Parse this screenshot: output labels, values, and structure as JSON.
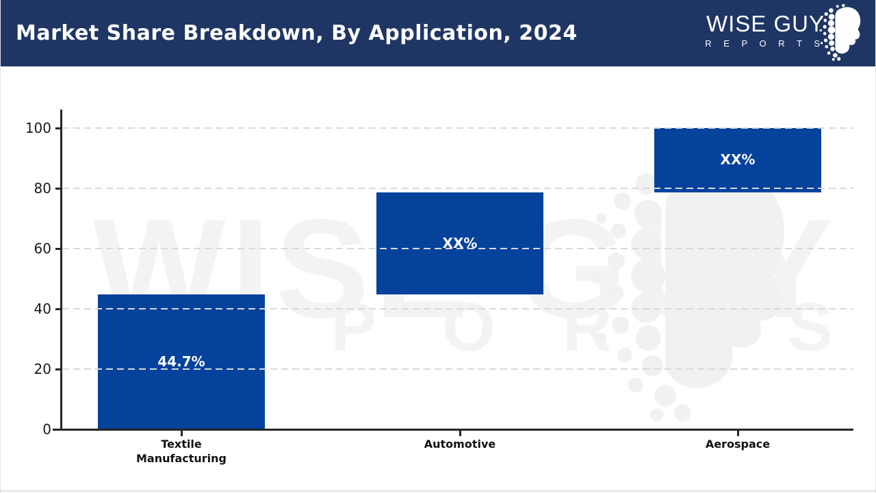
{
  "header": {
    "title": "Market Share Breakdown, By Application, 2024",
    "logo": {
      "name": "WISE GUY",
      "sub": "R E P O R T S"
    }
  },
  "watermark": {
    "line1": "WISE GUY",
    "line2": "R E P O R T S"
  },
  "colors": {
    "header_bg": "#1F3664",
    "header_text": "#FFFFFF",
    "bar_fill": "#04429C",
    "bar_label_text": "#FFFFFF",
    "gridline": "#D9D9D9",
    "axis_line": "#262626",
    "tick_text": "#1A1A1A",
    "category_text": "#111111",
    "watermark_text": "#F3F3F3",
    "watermark_face": "#F1F1F1",
    "background": "#FFFFFF"
  },
  "chart_data": {
    "type": "bar",
    "variant": "floating-segment waterfall, single color",
    "title": "Market Share Breakdown, By Application, 2024",
    "categories": [
      "Textile Manufacturing",
      "Automotive",
      "Aerospace"
    ],
    "category_lines": [
      [
        "Textile",
        "Manufacturing"
      ],
      [
        "Automotive"
      ],
      [
        "Aerospace"
      ]
    ],
    "bars": [
      {
        "category": "Textile Manufacturing",
        "start": 0,
        "end": 44.7,
        "label": "44.7%"
      },
      {
        "category": "Automotive",
        "start": 44.7,
        "end": 78.6,
        "label": "XX%"
      },
      {
        "category": "Aerospace",
        "start": 78.6,
        "end": 100,
        "label": "XX%"
      }
    ],
    "ylim": [
      0,
      100
    ],
    "yticks": [
      0,
      20,
      40,
      60,
      80,
      100
    ],
    "xlabel": "",
    "ylabel": "",
    "legend": "none",
    "grid": "horizontal dashed gridlines drawn over bars"
  }
}
